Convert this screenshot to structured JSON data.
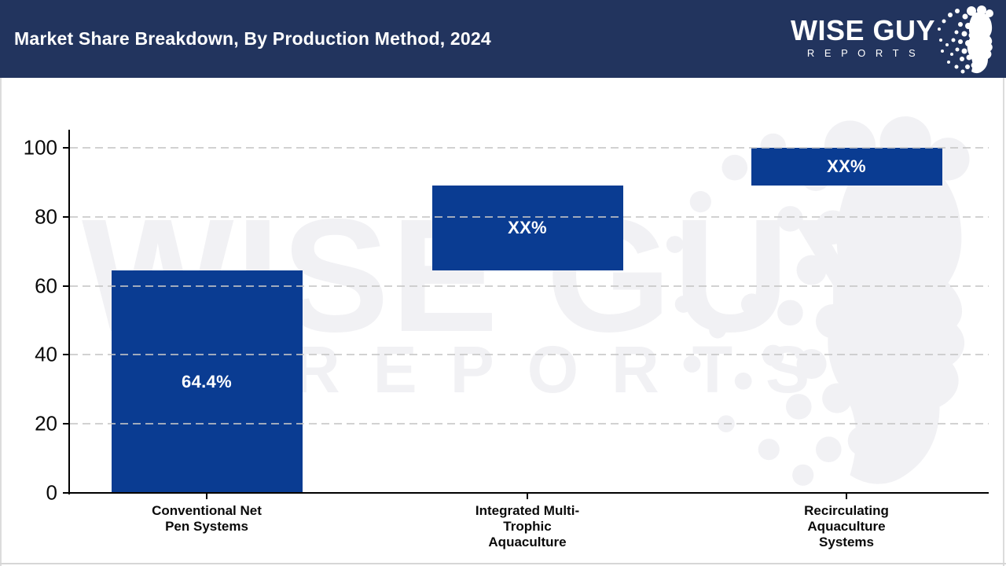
{
  "header": {
    "title": "Market Share Breakdown, By Production Method, 2024",
    "logo": {
      "wordmark": "WISE GUY",
      "subtext": "R E P O R T S"
    }
  },
  "watermark": {
    "line1": "WISE GUY",
    "line2": "REPORTS"
  },
  "colors": {
    "header_bg": "#22345e",
    "bar": "#0a3c92",
    "grid": "#c6c6c6",
    "axis": "#000000",
    "bar_label": "#ffffff",
    "watermark": "#f1f1f4"
  },
  "chart_data": {
    "type": "bar",
    "subtype": "floating-segment-waterfall",
    "title": "Market Share Breakdown, By Production Method, 2024",
    "categories": [
      [
        "Conventional Net",
        "Pen Systems"
      ],
      [
        "Integrated Multi-",
        "Trophic",
        "Aquaculture"
      ],
      [
        "Recirculating",
        "Aquaculture",
        "Systems"
      ]
    ],
    "segments": [
      {
        "start": 0,
        "end": 64.4,
        "label": "64.4%"
      },
      {
        "start": 64.4,
        "end": 89,
        "label": "XX%"
      },
      {
        "start": 89,
        "end": 100,
        "label": "XX%"
      }
    ],
    "xlabel": "",
    "ylabel": "",
    "ylim": [
      0,
      100
    ],
    "yticks": [
      0,
      20,
      40,
      60,
      80,
      100
    ],
    "grid": true,
    "grid_style": "dashed",
    "legend": null
  }
}
